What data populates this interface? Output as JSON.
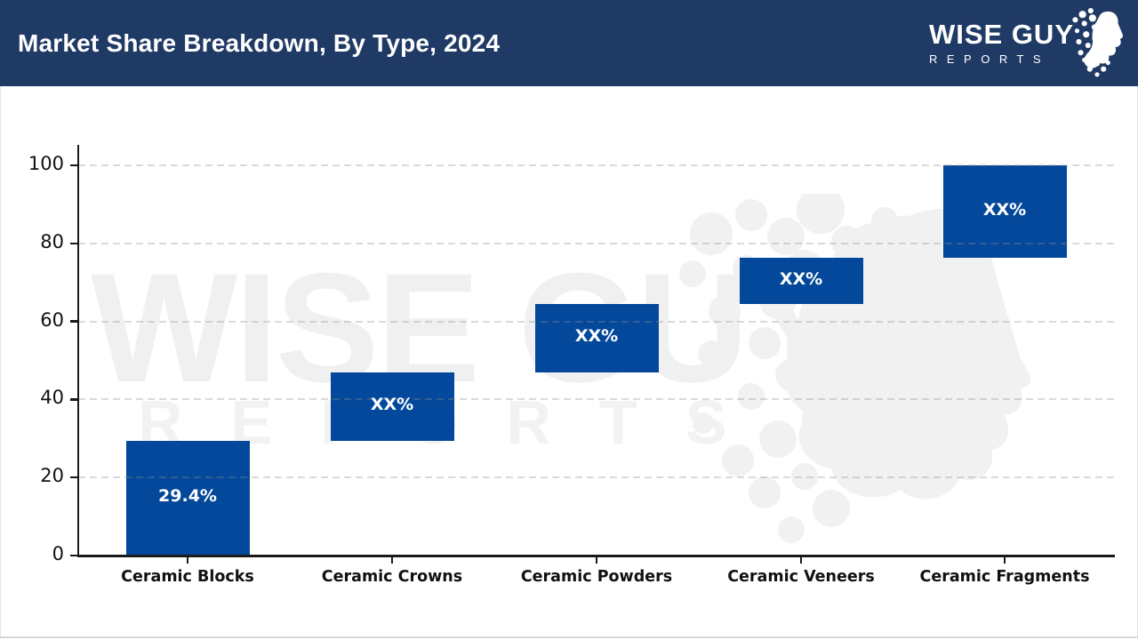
{
  "header": {
    "title": "Market Share Breakdown, By Type, 2024"
  },
  "logo": {
    "name": "WISE GUY",
    "sub": "REPORTS",
    "head_icon": "dotted-head-profile"
  },
  "watermark": {
    "line1": "WISE GUY",
    "line2": "REPORTS"
  },
  "colors": {
    "header_bg": "#203A66",
    "bar": "#04489B",
    "bar_label": "#FFFFFF",
    "axis": "#1A1A1A",
    "gridline_on_white": "#DCDCDC",
    "watermark": "#F0F0F0"
  },
  "chart_data": {
    "type": "bar",
    "subtype": "floating-waterfall",
    "title": "Market Share Breakdown, By Type, 2024",
    "categories": [
      "Ceramic Blocks",
      "Ceramic Crowns",
      "Ceramic Powders",
      "Ceramic Veneers",
      "Ceramic Fragments"
    ],
    "segments": [
      {
        "category": "Ceramic Blocks",
        "start": 0,
        "end": 29.4,
        "label": "29.4%"
      },
      {
        "category": "Ceramic Crowns",
        "start": 29.4,
        "end": 47.0,
        "label": "XX%"
      },
      {
        "category": "Ceramic Powders",
        "start": 47.0,
        "end": 64.5,
        "label": "XX%"
      },
      {
        "category": "Ceramic Veneers",
        "start": 64.5,
        "end": 76.3,
        "label": "XX%"
      },
      {
        "category": "Ceramic Fragments",
        "start": 76.3,
        "end": 100.0,
        "label": "XX%"
      }
    ],
    "xlabel": "",
    "ylabel": "",
    "ylim": [
      0,
      105
    ],
    "yticks": [
      0,
      20,
      40,
      60,
      80,
      100
    ],
    "grid": "horizontal-dashed",
    "legend": null
  }
}
